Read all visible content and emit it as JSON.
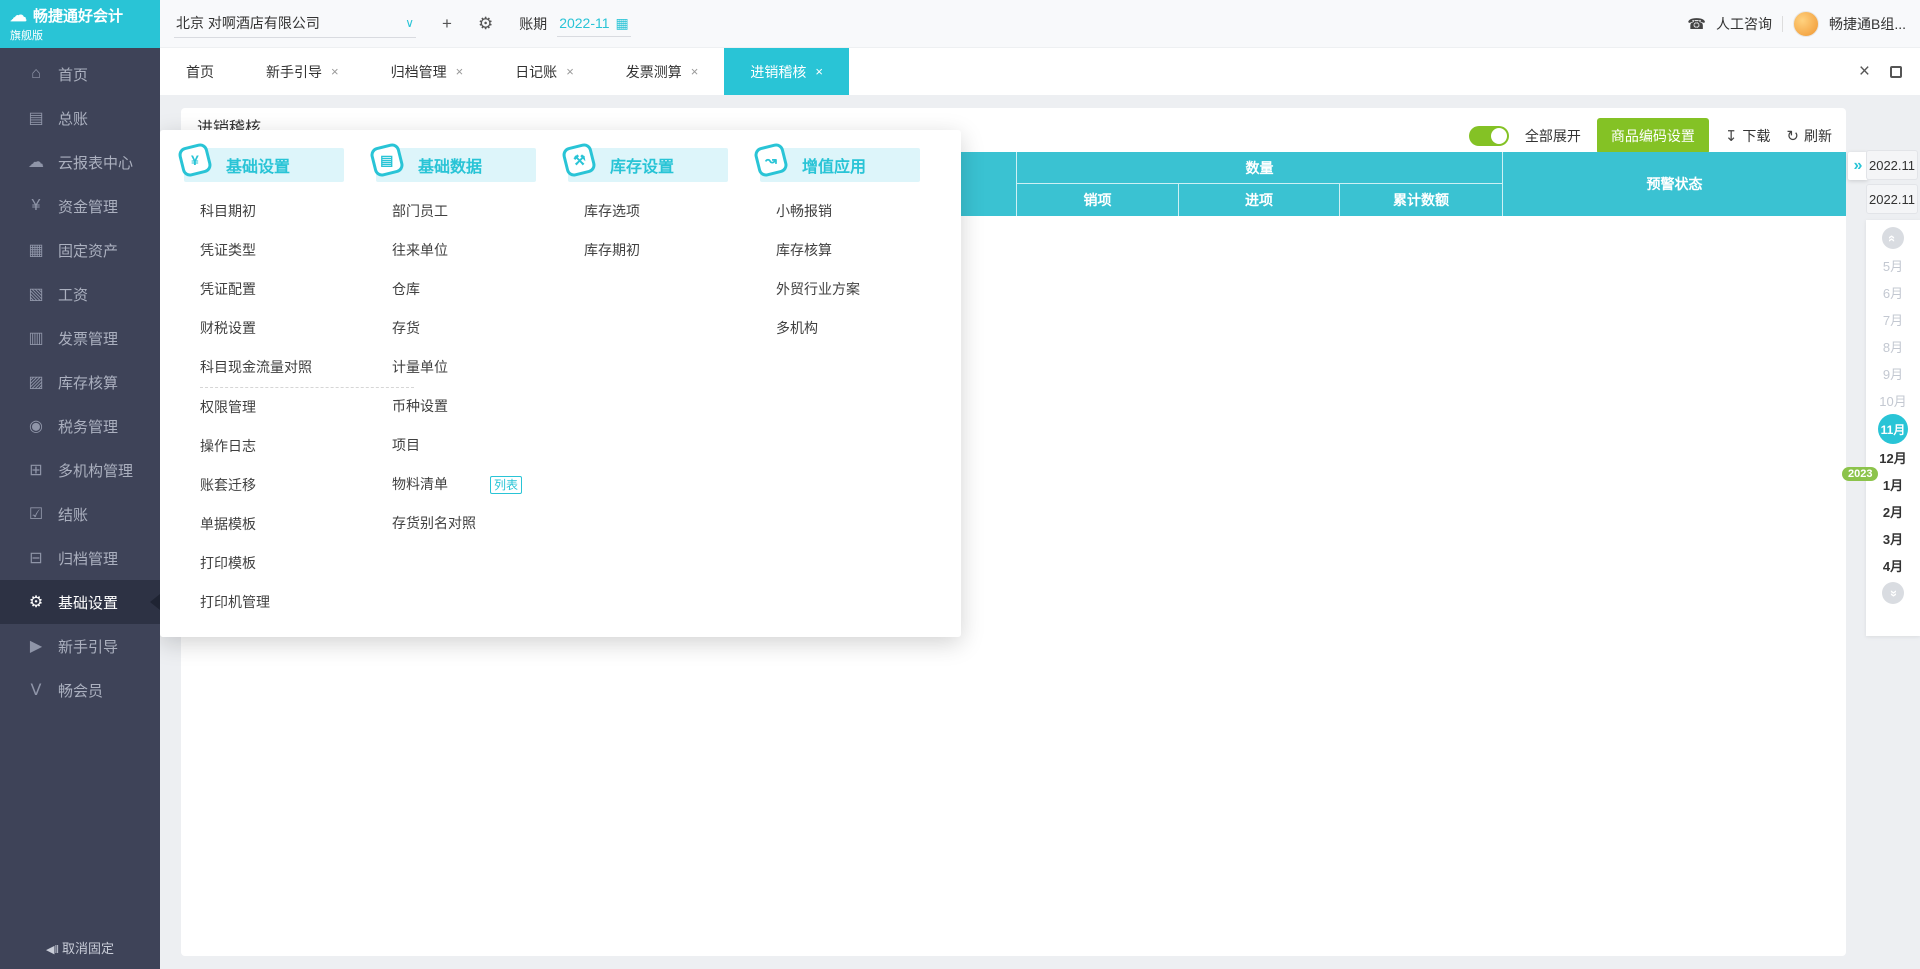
{
  "colors": {
    "teal": "#29c4d6",
    "header_teal": "#3ac2d2",
    "green": "#84c225",
    "sidebar_bg": "#3e4358",
    "sidebar_active_bg": "#2d3244",
    "badge_green": "#8cc34b"
  },
  "brand": {
    "logo_icon": "☁",
    "name": "畅捷通好会计",
    "edition": "旗舰版"
  },
  "topbar": {
    "company": "北京 对啊酒店有限公司",
    "chevron_icon": "∨",
    "plus_icon": "+",
    "gear_icon": "⚙",
    "period_label": "账期",
    "period_value": "2022-11",
    "calendar_icon": "▦",
    "support_icon": "☎",
    "support_label": "人工咨询",
    "user_label": "畅捷通B组..."
  },
  "window": {
    "close_icon": "×"
  },
  "tabs": {
    "items": [
      {
        "label": "首页"
      },
      {
        "label": "新手引导",
        "close": "×"
      },
      {
        "label": "归档管理",
        "close": "×"
      },
      {
        "label": "日记账",
        "close": "×"
      },
      {
        "label": "发票测算",
        "close": "×"
      },
      {
        "label": "进销稽核",
        "close": "×",
        "active": true
      }
    ]
  },
  "sidebar": {
    "items": [
      {
        "label": "首页",
        "icon": "⌂"
      },
      {
        "label": "总账",
        "icon": "▤"
      },
      {
        "label": "云报表中心",
        "icon": "☁"
      },
      {
        "label": "资金管理",
        "icon": "¥"
      },
      {
        "label": "固定资产",
        "icon": "▦"
      },
      {
        "label": "工资",
        "icon": "▧"
      },
      {
        "label": "发票管理",
        "icon": "▥"
      },
      {
        "label": "库存核算",
        "icon": "▨"
      },
      {
        "label": "税务管理",
        "icon": "◉"
      },
      {
        "label": "多机构管理",
        "icon": "⊞"
      },
      {
        "label": "结账",
        "icon": "☑"
      },
      {
        "label": "归档管理",
        "icon": "⊟"
      },
      {
        "label": "基础设置",
        "icon": "⚙",
        "active": true
      },
      {
        "label": "新手引导",
        "icon": "▶"
      },
      {
        "label": "畅会员",
        "icon": "Ⅴ"
      }
    ],
    "unpin_icon": "◀‖",
    "unpin_label": "取消固定"
  },
  "page": {
    "title": "进销稽核"
  },
  "toolbar": {
    "expand_label": "全部展开",
    "encode_button": "商品编码设置",
    "download_icon": "↧",
    "download_label": "下载",
    "refresh_icon": "↻",
    "refresh_label": "刷新"
  },
  "table": {
    "qty_group": "数量",
    "sub_columns": [
      "销项",
      "进项",
      "累计数额"
    ],
    "status": "预警状态",
    "expander_icon": "»"
  },
  "megamenu": {
    "sections": [
      {
        "title": "基础设置",
        "icon": "¥",
        "items": [
          {
            "label": "科目期初"
          },
          {
            "label": "凭证类型"
          },
          {
            "label": "凭证配置"
          },
          {
            "label": "财税设置"
          },
          {
            "label": "科目现金流量对照"
          },
          {
            "label": "权限管理"
          },
          {
            "label": "操作日志"
          },
          {
            "label": "账套迁移"
          },
          {
            "label": "单据模板"
          },
          {
            "label": "打印模板"
          },
          {
            "label": "打印机管理"
          }
        ]
      },
      {
        "title": "基础数据",
        "icon": "▤",
        "items": [
          {
            "label": "部门员工"
          },
          {
            "label": "往来单位"
          },
          {
            "label": "仓库"
          },
          {
            "label": "存货"
          },
          {
            "label": "计量单位"
          },
          {
            "label": "币种设置"
          },
          {
            "label": "项目"
          },
          {
            "label": "物料清单",
            "badge": "列表"
          },
          {
            "label": "存货别名对照"
          }
        ]
      },
      {
        "title": "库存设置",
        "icon": "⚒",
        "items": [
          {
            "label": "库存选项"
          },
          {
            "label": "库存期初"
          }
        ]
      },
      {
        "title": "增值应用",
        "icon": "↝",
        "items": [
          {
            "label": "小畅报销"
          },
          {
            "label": "库存核算"
          },
          {
            "label": "外贸行业方案"
          },
          {
            "label": "多机构"
          }
        ]
      }
    ]
  },
  "month_rail": {
    "period_boxes": [
      "2022.11",
      "2022.11"
    ],
    "up_icon": "«",
    "down_icon": "«",
    "year_badge": "2023",
    "months": [
      {
        "label": "5月"
      },
      {
        "label": "6月"
      },
      {
        "label": "7月"
      },
      {
        "label": "8月"
      },
      {
        "label": "9月"
      },
      {
        "label": "10月"
      },
      {
        "label": "11月",
        "active": true
      },
      {
        "label": "12月"
      },
      {
        "label": "1月"
      },
      {
        "label": "2月"
      },
      {
        "label": "3月"
      },
      {
        "label": "4月"
      }
    ]
  }
}
